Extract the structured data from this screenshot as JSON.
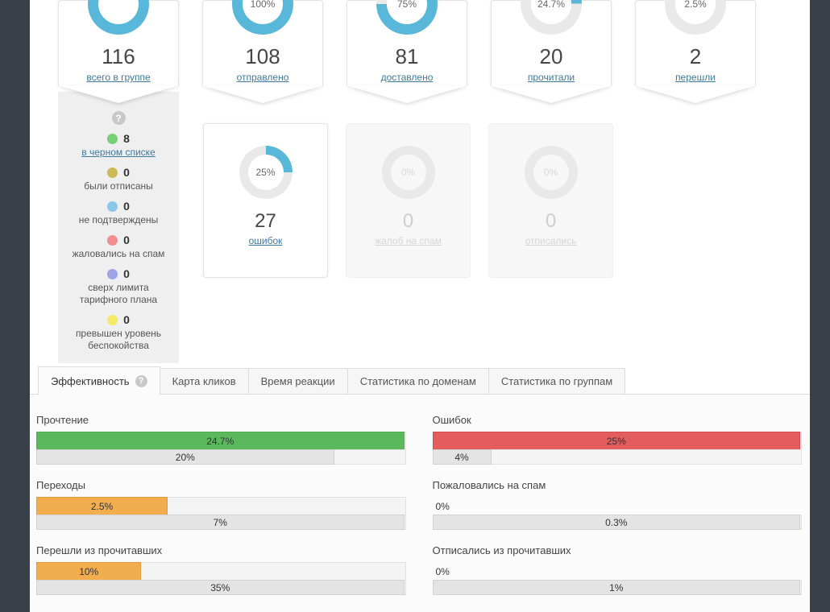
{
  "icons": {
    "help": "?"
  },
  "colors": {
    "accent_blue": "#59b7d9",
    "green": "#5cb85c",
    "green_border": "#4cae4c",
    "red": "#e25d5c",
    "red_border": "#d24b4a",
    "orange": "#f2ad4f",
    "orange_border": "#e09a39",
    "gray": "#e4e4e4",
    "gray_border": "#d2d2d2",
    "frame": "#3a4047"
  },
  "summary_cards": [
    {
      "value": "116",
      "label": "всего в группе",
      "percent": 100,
      "percent_label": ""
    },
    {
      "value": "108",
      "label": "отправлено",
      "percent": 100,
      "percent_label": "100%"
    },
    {
      "value": "81",
      "label": "доставлено",
      "percent": 75,
      "percent_label": "75%"
    },
    {
      "value": "20",
      "label": "прочитали",
      "percent": 24.7,
      "percent_label": "24.7%"
    },
    {
      "value": "2",
      "label": "перешли",
      "percent": 2.5,
      "percent_label": "2.5%"
    }
  ],
  "legend": {
    "items": [
      {
        "count": "8",
        "label": "в черном списке",
        "color": "#76d076"
      },
      {
        "count": "0",
        "label": "были отписаны",
        "color": "#ccba52"
      },
      {
        "count": "0",
        "label": "не подтверждены",
        "color": "#89c8ea"
      },
      {
        "count": "0",
        "label": "жаловались на спам",
        "color": "#f28f8d"
      },
      {
        "count": "0",
        "label": "сверх лимита тарифного плана",
        "color": "#9fa3e8"
      },
      {
        "count": "0",
        "label": "превышен уровень беспокойства",
        "color": "#f5ea67"
      }
    ]
  },
  "detail_cards": [
    {
      "value": "27",
      "label": "ошибок",
      "percent": 25,
      "percent_label": "25%"
    },
    {
      "value": "0",
      "label": "жалоб на спам",
      "percent": 0,
      "percent_label": "0%"
    },
    {
      "value": "0",
      "label": "отписались",
      "percent": 0,
      "percent_label": "0%"
    }
  ],
  "tabs": [
    {
      "label": "Эффективность",
      "active": true
    },
    {
      "label": "Карта кликов",
      "active": false
    },
    {
      "label": "Время реакции",
      "active": false
    },
    {
      "label": "Статистика по доменам",
      "active": false
    },
    {
      "label": "Статистика по группам",
      "active": false
    }
  ],
  "chart_data": {
    "type": "bar",
    "left_groups": [
      {
        "title": "Прочтение",
        "rows": [
          {
            "label": "24.7%",
            "value": 24.7,
            "color": "green"
          },
          {
            "label": "20%",
            "value": 20,
            "color": "gray"
          }
        ]
      },
      {
        "title": "Переходы",
        "rows": [
          {
            "label": "2.5%",
            "value": 2.5,
            "color": "orange"
          },
          {
            "label": "7%",
            "value": 7,
            "color": "gray"
          }
        ]
      },
      {
        "title": "Перешли из прочитавших",
        "rows": [
          {
            "label": "10%",
            "value": 10,
            "color": "orange"
          },
          {
            "label": "35%",
            "value": 35,
            "color": "gray"
          }
        ]
      }
    ],
    "right_groups": [
      {
        "title": "Ошибок",
        "rows": [
          {
            "label": "25%",
            "value": 25,
            "color": "red"
          },
          {
            "label": "4%",
            "value": 4,
            "color": "gray"
          }
        ]
      },
      {
        "title": "Пожаловались на спам",
        "rows": [
          {
            "label": "0%",
            "value": 0,
            "color": "red"
          },
          {
            "label": "0.3%",
            "value": 0.3,
            "color": "gray"
          }
        ]
      },
      {
        "title": "Отписались из прочитавших",
        "rows": [
          {
            "label": "0%",
            "value": 0,
            "color": "orange"
          },
          {
            "label": "1%",
            "value": 1,
            "color": "gray"
          }
        ]
      }
    ]
  }
}
